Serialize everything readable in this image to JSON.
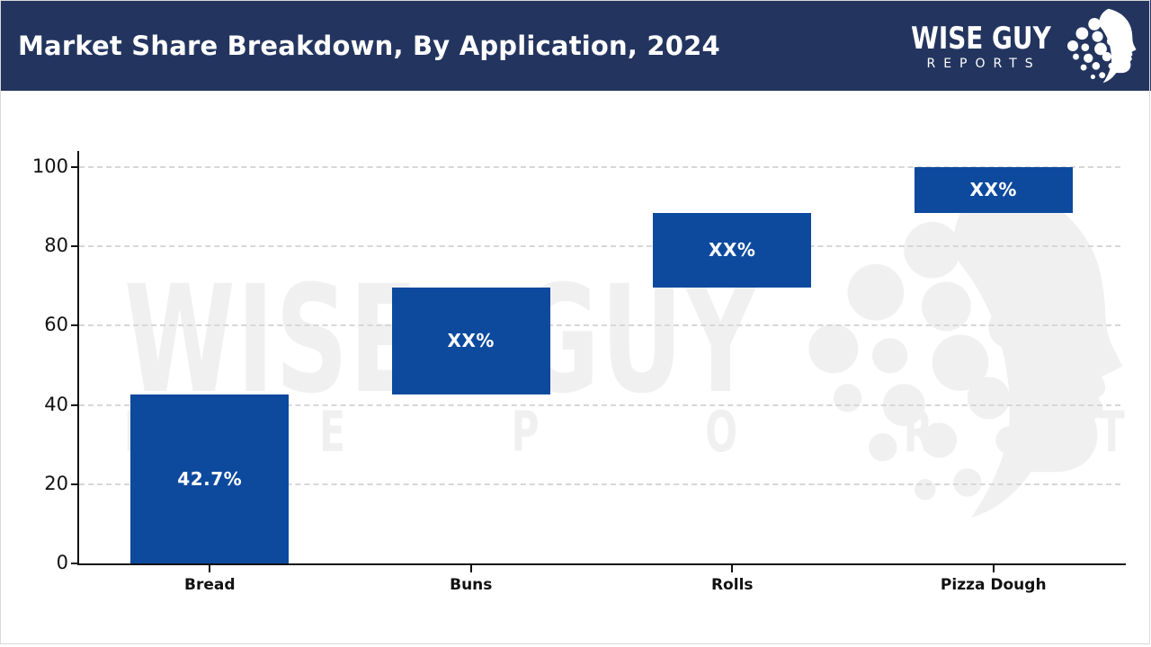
{
  "header": {
    "title": "Market Share Breakdown, By Application, 2024",
    "logo": {
      "line1": "WISE GUY",
      "line2": "REPORTS",
      "head_icon": "wise-guy-head-icon"
    }
  },
  "watermark": {
    "line1": "WISE GUY",
    "line2": "R E P O R T S",
    "head_icon": "wise-guy-head-watermark-icon"
  },
  "colors": {
    "header_bg": "#23355f",
    "bar_fill": "#0d4a9e",
    "bar_label": "#ffffff",
    "gridline": "#d7d7d7",
    "axis": "#111111",
    "watermark": "#f0f0f0"
  },
  "chart_data": {
    "type": "bar",
    "subtype": "waterfall",
    "title": "Market Share Breakdown, By Application, 2024",
    "categories": [
      "Bread",
      "Buns",
      "Rolls",
      "Pizza Dough"
    ],
    "segments": [
      {
        "category": "Bread",
        "label": "42.7%",
        "start": 0,
        "end": 42.7
      },
      {
        "category": "Buns",
        "label": "XX%",
        "start": 42.7,
        "end": 69.7
      },
      {
        "category": "Rolls",
        "label": "XX%",
        "start": 69.7,
        "end": 88.5
      },
      {
        "category": "Pizza Dough",
        "label": "XX%",
        "start": 88.5,
        "end": 100
      }
    ],
    "xlabel": "",
    "ylabel": "",
    "yticks": [
      0,
      20,
      40,
      60,
      80,
      100
    ],
    "ylim": [
      0,
      100
    ],
    "grid": "horizontal-dashed",
    "legend": "none"
  }
}
